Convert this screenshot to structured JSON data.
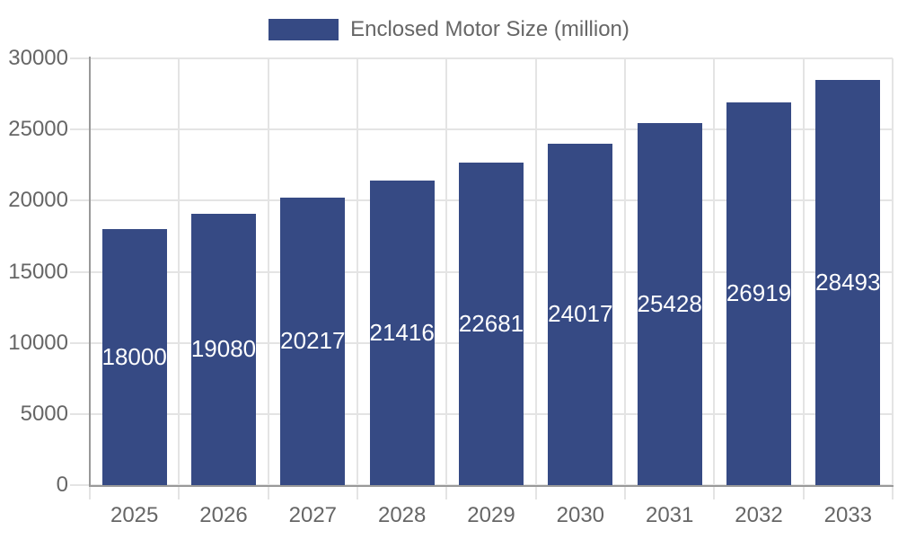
{
  "chart_data": {
    "type": "bar",
    "title": "",
    "categories": [
      "2025",
      "2026",
      "2027",
      "2028",
      "2029",
      "2030",
      "2031",
      "2032",
      "2033"
    ],
    "series": [
      {
        "name": "Enclosed Motor Size (million)",
        "values": [
          18000,
          19080,
          20217,
          21416,
          22681,
          24017,
          25428,
          26919,
          28493
        ],
        "color": "#364A84"
      }
    ],
    "value_labels_shown": true,
    "xlabel": "",
    "ylabel": "",
    "ylim": [
      0,
      30000
    ],
    "yticks": [
      0,
      5000,
      10000,
      15000,
      20000,
      25000,
      30000
    ],
    "grid": true,
    "legend_position": "top",
    "colors": {
      "bar": "#364A84",
      "value_label": "#FFFFFF",
      "axis_text": "#666666",
      "gridline": "#E4E4E4",
      "axis_line": "#999999",
      "background": "#FFFFFF"
    }
  }
}
